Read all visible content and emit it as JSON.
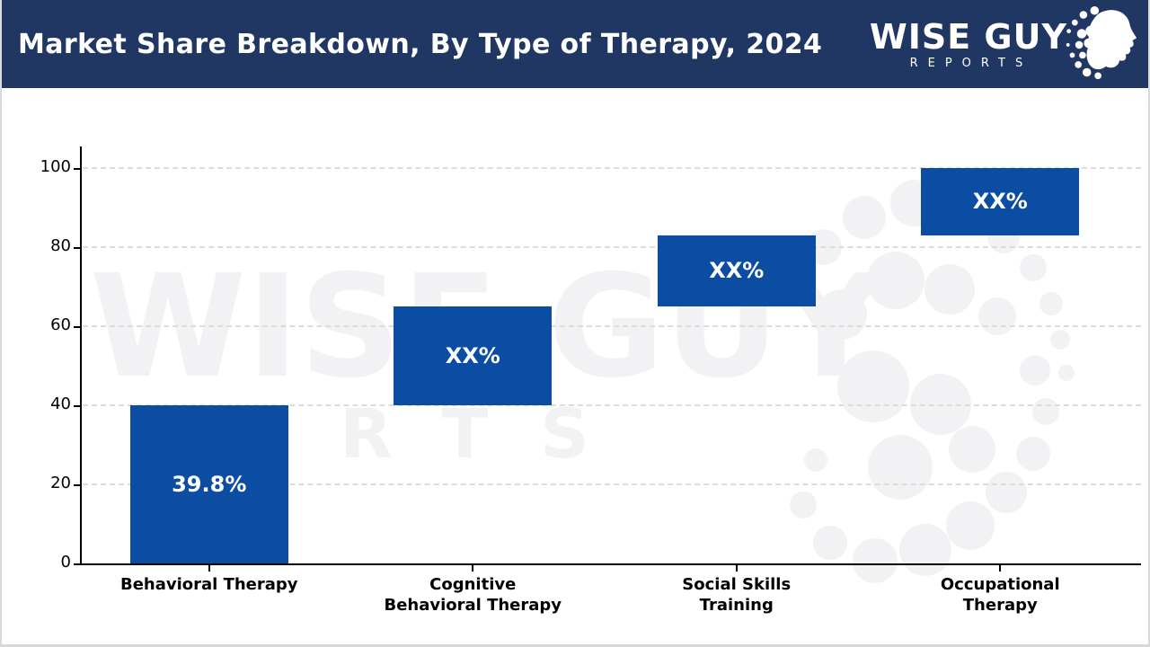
{
  "header": {
    "title": "Market Share Breakdown, By Type of Therapy, 2024",
    "background_color": "#203764",
    "logo": {
      "line1": "WISE GUY",
      "line2": "REPORTS"
    }
  },
  "watermark": {
    "line1": "WISE GUY",
    "line2": "PORTS"
  },
  "chart_data": {
    "type": "bar",
    "subtype": "floating-waterfall",
    "title": "Market Share Breakdown, By Type of Therapy, 2024",
    "categories": [
      "Behavioral Therapy",
      "Cognitive\nBehavioral Therapy",
      "Social Skills\nTraining",
      "Occupational\nTherapy"
    ],
    "bars": [
      {
        "category": "Behavioral Therapy",
        "from": 0,
        "to": 40,
        "label": "39.8%"
      },
      {
        "category": "Cognitive Behavioral Therapy",
        "from": 40,
        "to": 65,
        "label": "XX%"
      },
      {
        "category": "Social Skills Training",
        "from": 65,
        "to": 83,
        "label": "XX%"
      },
      {
        "category": "Occupational Therapy",
        "from": 83,
        "to": 100,
        "label": "XX%"
      }
    ],
    "xlabel": "",
    "ylabel": "",
    "ylim": [
      0,
      100
    ],
    "yticks": [
      0,
      20,
      40,
      60,
      80,
      100
    ],
    "grid": "horizontal-dashed",
    "legend": "none",
    "bar_color": "#0b4da2",
    "bar_label_color": "#ffffff",
    "axis_color": "#000000",
    "gridline_color": "#dcdcdc"
  }
}
